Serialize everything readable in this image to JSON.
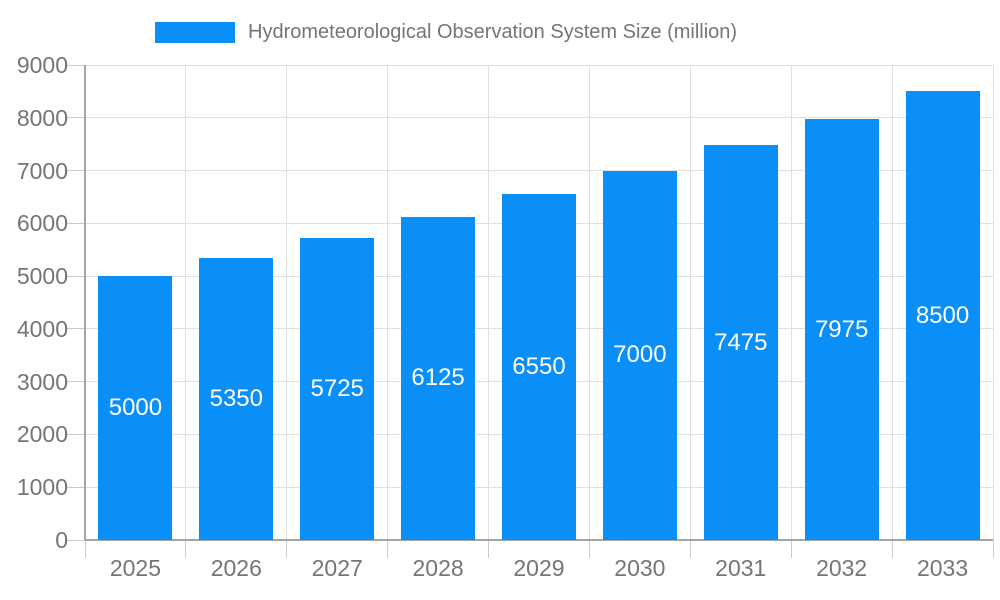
{
  "chart_data": {
    "type": "bar",
    "title": "Hydrometeorological Observation System Size (million)",
    "categories": [
      "2025",
      "2026",
      "2027",
      "2028",
      "2029",
      "2030",
      "2031",
      "2032",
      "2033"
    ],
    "values": [
      5000,
      5350,
      5725,
      6125,
      6550,
      7000,
      7475,
      7975,
      8500
    ],
    "ylim": [
      0,
      9000
    ],
    "ytick_step": 1000,
    "y_tick_labels": [
      "0",
      "1000",
      "2000",
      "3000",
      "4000",
      "5000",
      "6000",
      "7000",
      "8000",
      "9000"
    ],
    "grid": true,
    "bar_labels_visible": true,
    "legend_position": "top"
  },
  "legend": {
    "swatch_icon": "series-color-swatch",
    "label": "Hydrometeorological Observation System Size (million)"
  },
  "colors": {
    "bar": "#0a8ff9",
    "grid": "#e0e0e0",
    "tick": "#cccccc",
    "axis": "#a6a6a6",
    "text": "#757575",
    "bar_label": "#ffffff"
  }
}
